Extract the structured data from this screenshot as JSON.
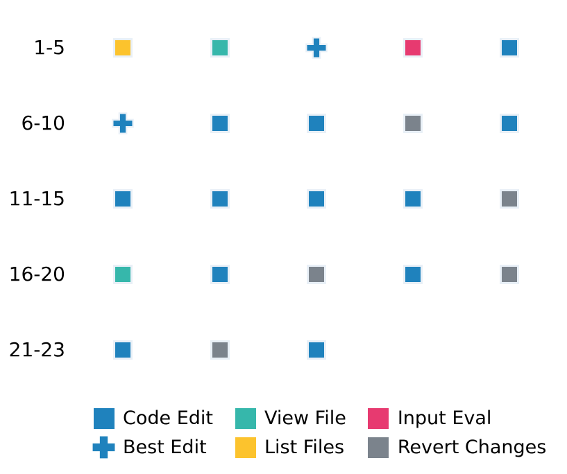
{
  "chart_data": {
    "type": "scatter",
    "subtype": "categorical-marker-matrix",
    "title": "",
    "xlabel": "",
    "ylabel": "",
    "background": "#ffffff",
    "text_color": "#000000",
    "marker_edge_color": "#e9f0f7",
    "grid": false,
    "axes_visible": false,
    "rows": [
      {
        "label": "1-5",
        "markers": [
          "List Files",
          "View File",
          "Best Edit",
          "Input Eval",
          "Code Edit"
        ]
      },
      {
        "label": "6-10",
        "markers": [
          "Best Edit",
          "Code Edit",
          "Code Edit",
          "Revert Changes",
          "Code Edit"
        ]
      },
      {
        "label": "11-15",
        "markers": [
          "Code Edit",
          "Code Edit",
          "Code Edit",
          "Code Edit",
          "Revert Changes"
        ]
      },
      {
        "label": "16-20",
        "markers": [
          "View File",
          "Code Edit",
          "Revert Changes",
          "Code Edit",
          "Revert Changes"
        ]
      },
      {
        "label": "21-23",
        "markers": [
          "Code Edit",
          "Revert Changes",
          "Code Edit"
        ]
      }
    ],
    "legend": {
      "position": "bottom",
      "columns": [
        [
          {
            "label": "Code Edit",
            "marker": "square",
            "color": "#1f82bd"
          },
          {
            "label": "Best Edit",
            "marker": "plus",
            "color": "#1f82bd"
          }
        ],
        [
          {
            "label": "View File",
            "marker": "square",
            "color": "#36b7ab"
          },
          {
            "label": "List Files",
            "marker": "square",
            "color": "#fcc32d"
          }
        ],
        [
          {
            "label": "Input Eval",
            "marker": "square",
            "color": "#e73a70"
          },
          {
            "label": "Revert Changes",
            "marker": "square",
            "color": "#7b838c"
          }
        ]
      ]
    }
  }
}
